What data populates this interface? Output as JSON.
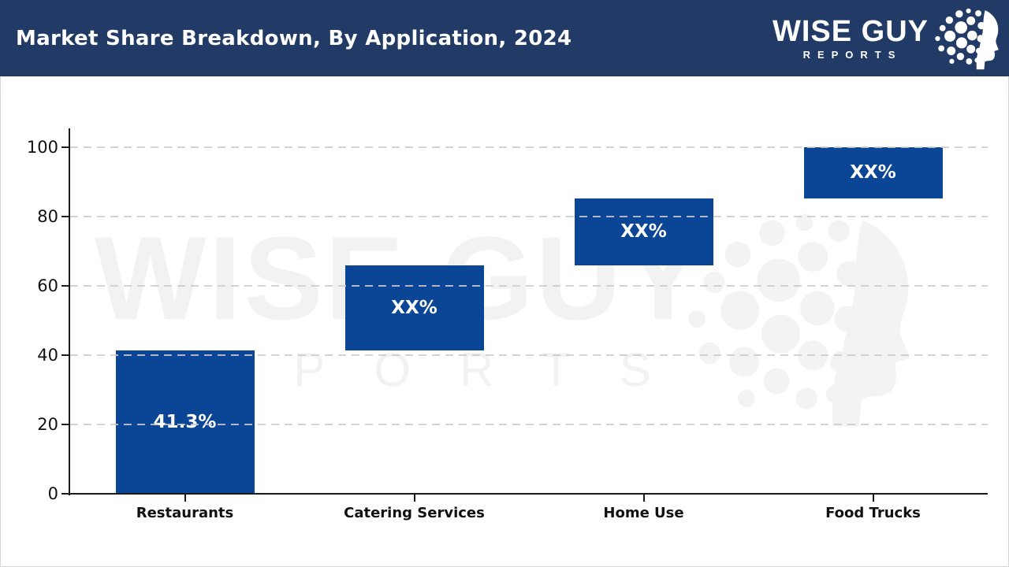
{
  "header": {
    "title": "Market Share Breakdown, By Application, 2024",
    "logo": {
      "line1": "WISE GUY",
      "line2": "REPORTS"
    }
  },
  "watermark": {
    "line1": "WISE GUY",
    "line2": "REPORTS"
  },
  "colors": {
    "header_bg": "#213a66",
    "bar": "#0a4596",
    "bar_label": "#ffffff",
    "axis": "#1a1a1a",
    "grid": "#cbcbcb",
    "watermark": "#f2f2f2",
    "canvas_border": "#d6d6d6"
  },
  "chart_data": {
    "type": "bar",
    "subtype": "waterfall",
    "title": "Market Share Breakdown, By Application, 2024",
    "categories": [
      "Restaurants",
      "Catering Services",
      "Home Use",
      "Food Trucks"
    ],
    "segments": [
      {
        "category": "Restaurants",
        "start": 0,
        "end": 41.3,
        "label": "41.3%"
      },
      {
        "category": "Catering Services",
        "start": 41.3,
        "end": 65.9,
        "label": "XX%"
      },
      {
        "category": "Home Use",
        "start": 65.9,
        "end": 85.2,
        "label": "XX%"
      },
      {
        "category": "Food Trucks",
        "start": 85.2,
        "end": 100,
        "label": "XX%"
      }
    ],
    "yticks": [
      0,
      20,
      40,
      60,
      80,
      100
    ],
    "ylim": [
      0,
      105.3
    ],
    "xlabel": "",
    "ylabel": "",
    "grid": "horizontal-dashed",
    "legend": "none"
  }
}
